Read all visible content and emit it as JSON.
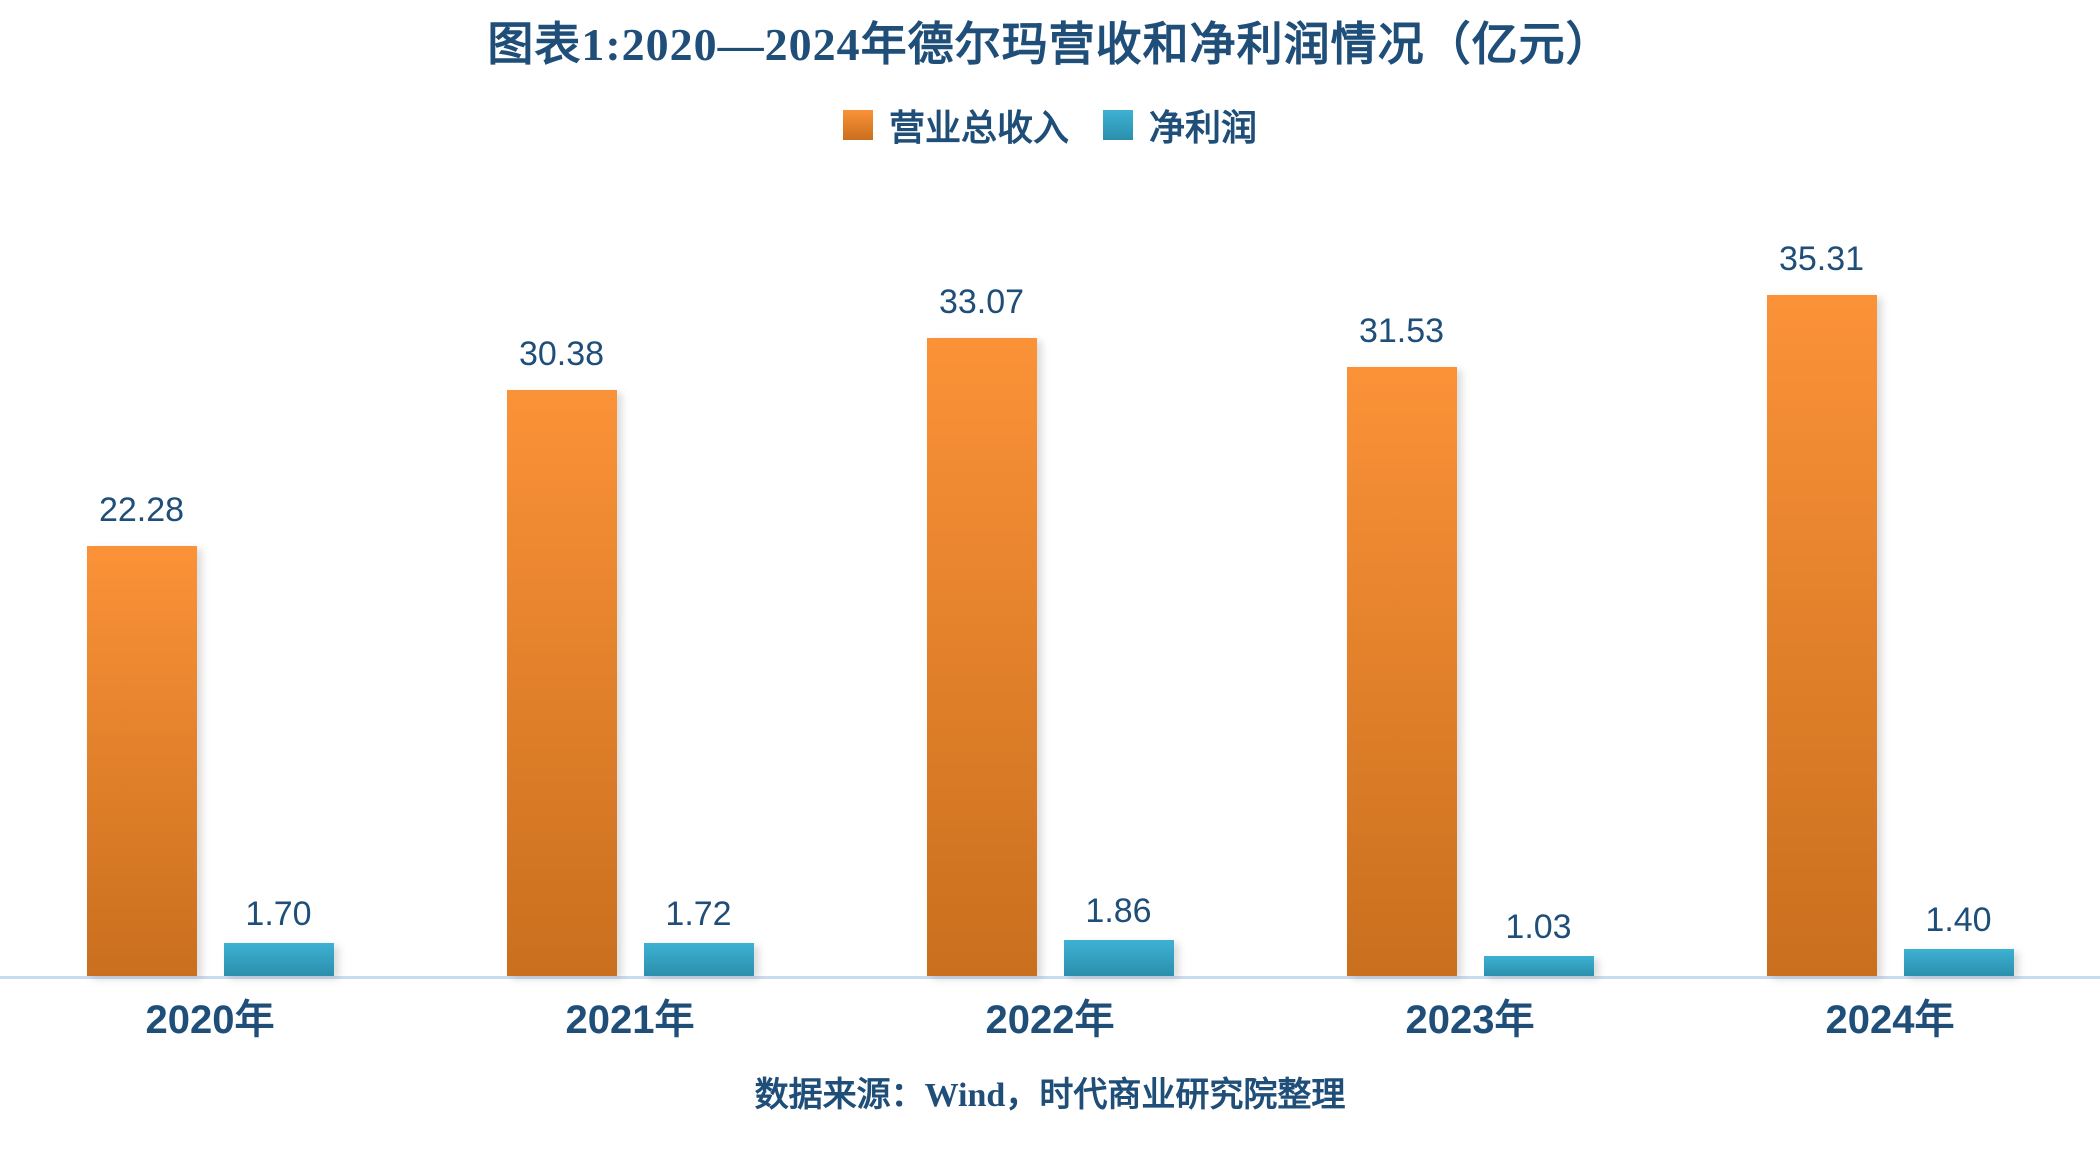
{
  "title": "图表1:2020—2024年德尔玛营收和净利润情况（亿元）",
  "source_note": "数据来源：Wind，时代商业研究院整理",
  "colors": {
    "text_navy": "#1F4E79",
    "axis_line": "#C9DCEE",
    "revenue_top": "#FB9238",
    "revenue_bottom": "#C96F1E",
    "profit_top": "#3EB1D3",
    "profit_bottom": "#2B8FAC"
  },
  "chart_data": {
    "type": "bar",
    "title": "图表1:2020—2024年德尔玛营收和净利润情况（亿元）",
    "categories": [
      "2020年",
      "2021年",
      "2022年",
      "2023年",
      "2024年"
    ],
    "series": [
      {
        "name": "营业总收入",
        "values": [
          22.28,
          30.38,
          33.07,
          31.53,
          35.31
        ]
      },
      {
        "name": "净利润",
        "values": [
          1.7,
          1.72,
          1.86,
          1.03,
          1.4
        ]
      }
    ],
    "value_labels": true,
    "value_label_decimals": 2,
    "xlabel": "",
    "ylabel": "",
    "unit": "亿元",
    "ylim": [
      0,
      38
    ],
    "grid": false,
    "legend_position": "top"
  }
}
